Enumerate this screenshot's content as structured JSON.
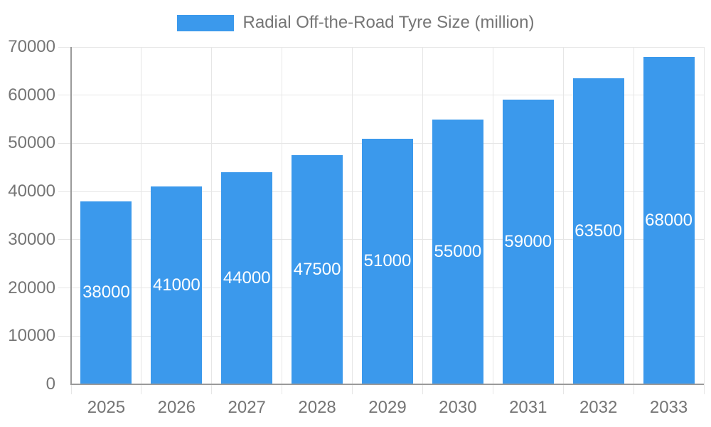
{
  "legend": {
    "label": "Radial Off-the-Road Tyre Size (million)",
    "swatch_color": "#3b99ec"
  },
  "chart_data": {
    "type": "bar",
    "title": "",
    "categories": [
      "2025",
      "2026",
      "2027",
      "2028",
      "2029",
      "2030",
      "2031",
      "2032",
      "2033"
    ],
    "series": [
      {
        "name": "Radial Off-the-Road Tyre Size (million)",
        "values": [
          38000,
          41000,
          44000,
          47500,
          51000,
          55000,
          59000,
          63500,
          68000
        ],
        "color": "#3b99ec"
      }
    ],
    "xlabel": "",
    "ylabel": "",
    "ylim": [
      0,
      70000
    ],
    "yticks": [
      0,
      10000,
      20000,
      30000,
      40000,
      50000,
      60000,
      70000
    ],
    "grid": true,
    "legend_position": "top",
    "bar_labels_visible": true
  },
  "colors": {
    "bar": "#3b99ec",
    "bar_label": "#ffffff",
    "axis_text": "#757575",
    "grid_line": "#e6e6e6",
    "axis_line": "#9a9a9a",
    "background": "#ffffff"
  }
}
